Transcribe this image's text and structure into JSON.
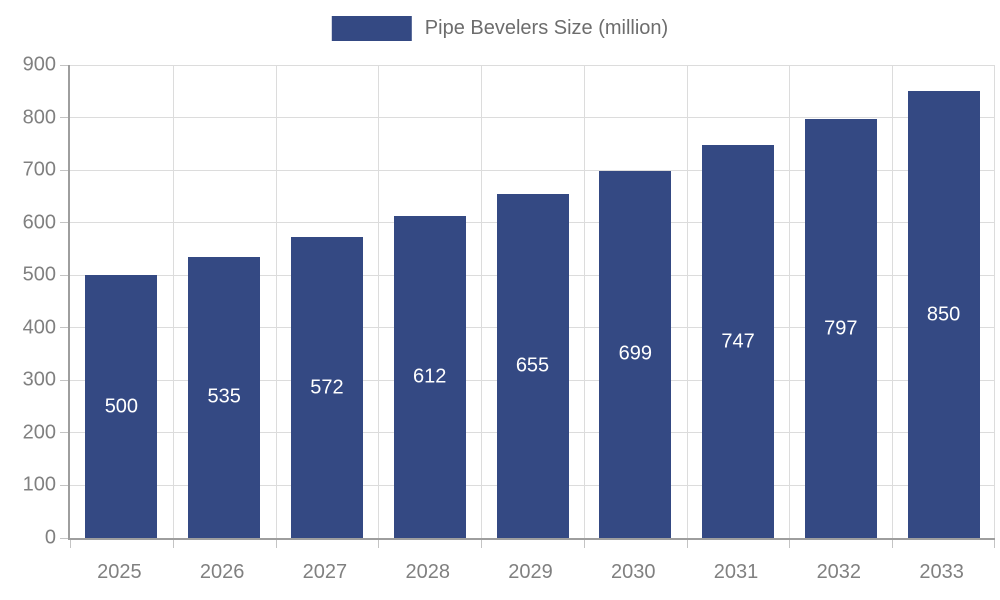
{
  "chart_data": {
    "type": "bar",
    "title": "",
    "categories": [
      "2025",
      "2026",
      "2027",
      "2028",
      "2029",
      "2030",
      "2031",
      "2032",
      "2033"
    ],
    "series": [
      {
        "name": "Pipe Bevelers Size (million)",
        "values": [
          500,
          535,
          572,
          612,
          655,
          699,
          747,
          797,
          850
        ]
      }
    ],
    "xlabel": "",
    "ylabel": "",
    "ylim": [
      0,
      900
    ],
    "yticks": [
      0,
      100,
      200,
      300,
      400,
      500,
      600,
      700,
      800,
      900
    ],
    "grid": true,
    "legend_position": "top-center",
    "value_labels": "inside-center"
  },
  "colors": {
    "bar": "#344983",
    "axis": "#9e9e9e",
    "grid": "#dcdcdc",
    "tick": "#c4c4c4",
    "axis_text": "#808080",
    "legend_text": "#6d6d6d",
    "value_label": "#ffffff"
  }
}
